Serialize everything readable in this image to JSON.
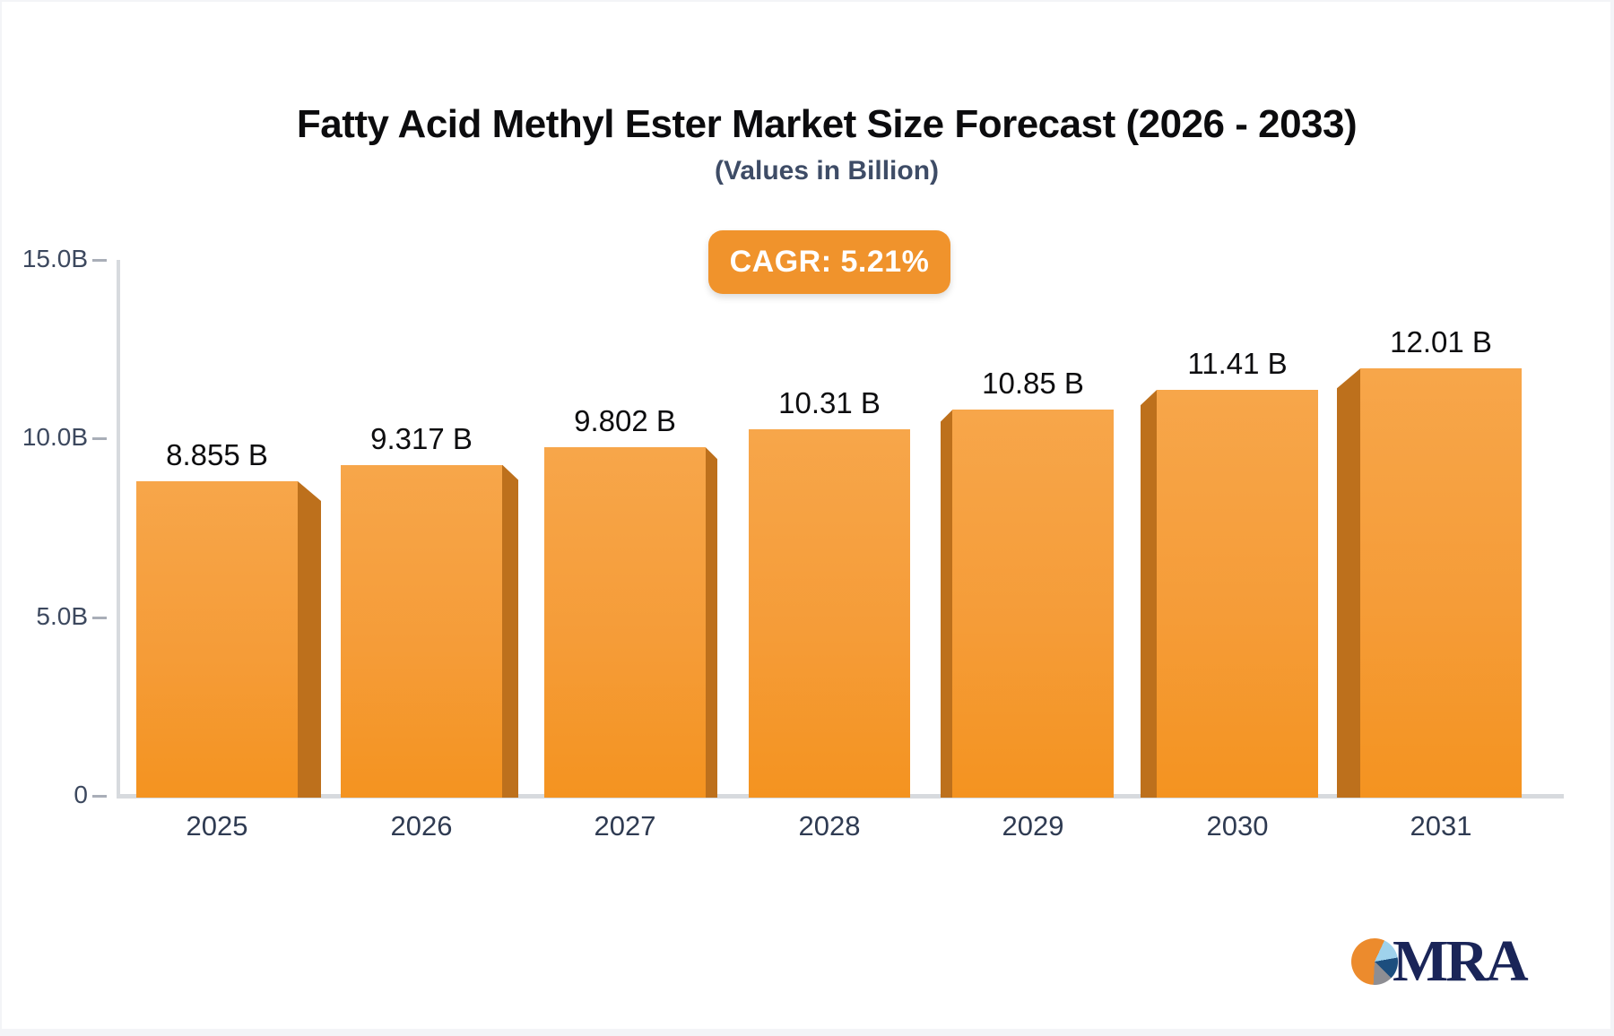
{
  "page": {
    "background": "#f3f4f7",
    "card_background": "#ffffff"
  },
  "header": {
    "title": "Fatty Acid Methyl Ester Market Size Forecast (2026 - 2033)",
    "subtitle": "(Values in Billion)"
  },
  "badge": {
    "label": "CAGR: 5.21%",
    "background": "#f0932c",
    "text_color": "#ffffff"
  },
  "chart_data": {
    "type": "bar",
    "title": "Fatty Acid Methyl Ester Market Size Forecast (2026 - 2033)",
    "subtitle": "(Values in Billion)",
    "categories": [
      "2025",
      "2026",
      "2027",
      "2028",
      "2029",
      "2030",
      "2031"
    ],
    "values": [
      8.855,
      9.317,
      9.802,
      10.31,
      10.85,
      11.41,
      12.01
    ],
    "value_labels": [
      "8.855 B",
      "9.317 B",
      "9.802 B",
      "10.31 B",
      "10.85 B",
      "11.41 B",
      "12.01 B"
    ],
    "cagr_annotation": "CAGR: 5.21%",
    "xlabel": "",
    "ylabel": "",
    "ylim": [
      0,
      15
    ],
    "yticks": [
      {
        "value": 0,
        "label": "0"
      },
      {
        "value": 5,
        "label": "5.0B"
      },
      {
        "value": 10,
        "label": "10.0B"
      },
      {
        "value": 15,
        "label": "15.0B"
      }
    ],
    "grid": false,
    "legend": "none",
    "bar_color_top": "#f7a64a",
    "bar_color_bottom": "#f49320",
    "bar_side_color": "#bd701c",
    "axis_color": "#d7dade",
    "tick_text_color": "#3c485e"
  },
  "logo": {
    "text": "MRA",
    "text_color": "#1a2558",
    "pie_colors": {
      "orange": "#ec8b2d",
      "light_blue": "#9fd2ec",
      "navy": "#1c4e7e",
      "gray": "#8e8e93"
    }
  }
}
